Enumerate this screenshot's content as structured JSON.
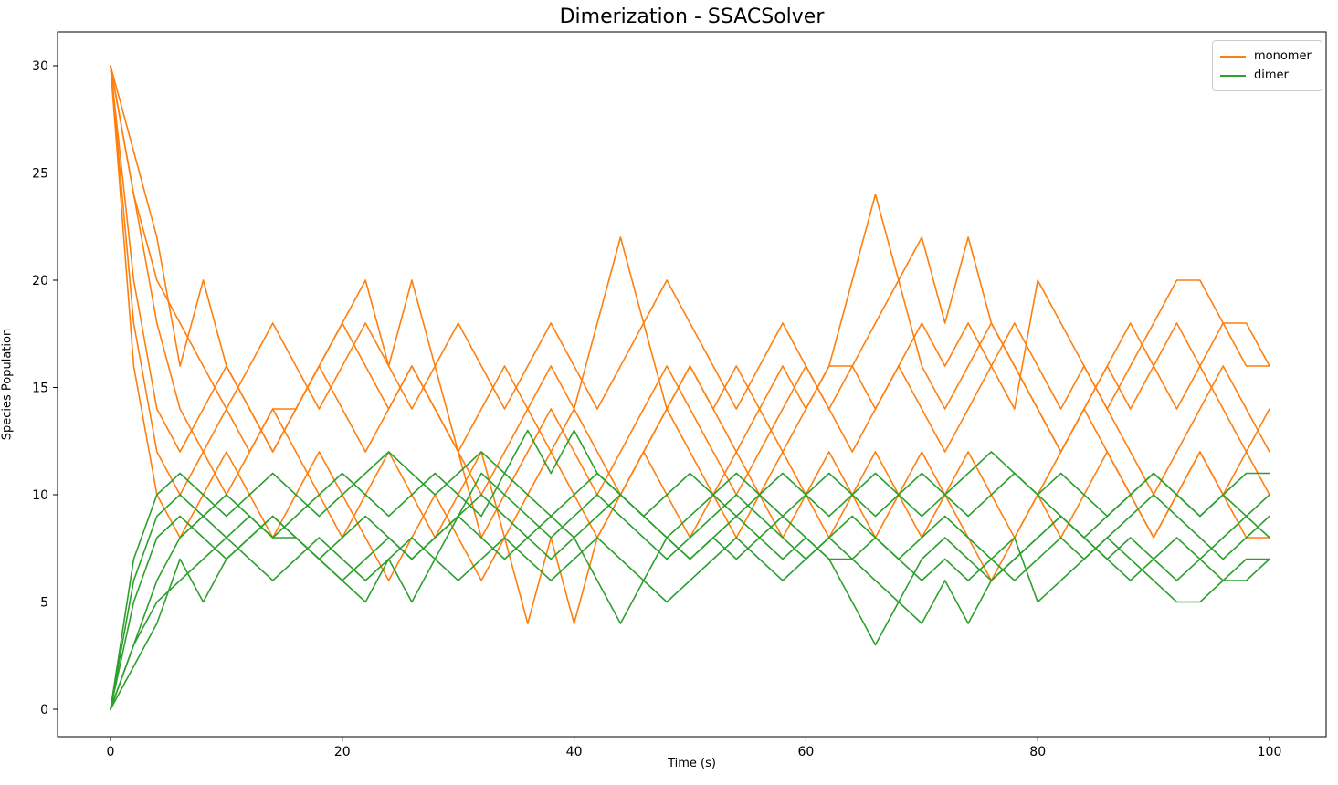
{
  "figure": {
    "title": "Dimerization - SSACSolver"
  },
  "axes": {
    "xlabel": "Time (s)",
    "ylabel": "Species Population"
  },
  "legend": {
    "position": "upper right",
    "items": [
      {
        "label": "monomer",
        "color": "#ff7f0e"
      },
      {
        "label": "dimer",
        "color": "#2ca02c"
      }
    ]
  },
  "chart_data": {
    "type": "line",
    "title": "Dimerization - SSACSolver",
    "xlabel": "Time (s)",
    "ylabel": "Species Population",
    "xlim": [
      0,
      100
    ],
    "ylim": [
      0,
      30
    ],
    "xticks": [
      0,
      20,
      40,
      60,
      80,
      100
    ],
    "yticks": [
      0,
      5,
      10,
      15,
      20,
      25,
      30
    ],
    "grid": false,
    "legend_position": "upper right",
    "n_trajectories": 6,
    "x": [
      0,
      2,
      4,
      6,
      8,
      10,
      12,
      14,
      16,
      18,
      20,
      22,
      24,
      26,
      28,
      30,
      32,
      34,
      36,
      38,
      40,
      42,
      44,
      46,
      48,
      50,
      52,
      54,
      56,
      58,
      60,
      62,
      64,
      66,
      68,
      70,
      72,
      74,
      76,
      78,
      80,
      82,
      84,
      86,
      88,
      90,
      92,
      94,
      96,
      98,
      100
    ],
    "series": [
      {
        "name": "monomer",
        "color": "#ff7f0e",
        "trajectories": [
          [
            30,
            24,
            18,
            14,
            12,
            14,
            12,
            14,
            14,
            16,
            14,
            12,
            14,
            16,
            14,
            12,
            14,
            16,
            14,
            12,
            14,
            18,
            22,
            18,
            14,
            16,
            14,
            12,
            14,
            16,
            14,
            16,
            20,
            24,
            20,
            16,
            14,
            16,
            18,
            16,
            14,
            12,
            14,
            16,
            14,
            16,
            18,
            16,
            14,
            12,
            14
          ],
          [
            30,
            26,
            22,
            16,
            20,
            16,
            14,
            12,
            14,
            16,
            18,
            16,
            14,
            16,
            14,
            12,
            10,
            12,
            14,
            16,
            14,
            12,
            10,
            12,
            14,
            16,
            14,
            16,
            14,
            12,
            14,
            16,
            16,
            18,
            20,
            22,
            18,
            22,
            18,
            16,
            14,
            12,
            14,
            16,
            18,
            16,
            14,
            16,
            18,
            16,
            16
          ],
          [
            30,
            20,
            14,
            12,
            14,
            16,
            14,
            12,
            14,
            16,
            18,
            20,
            16,
            20,
            16,
            12,
            8,
            10,
            12,
            14,
            12,
            10,
            12,
            14,
            16,
            14,
            12,
            10,
            12,
            14,
            16,
            14,
            12,
            14,
            16,
            14,
            12,
            14,
            16,
            18,
            16,
            14,
            16,
            14,
            12,
            10,
            12,
            14,
            16,
            14,
            12
          ],
          [
            30,
            18,
            12,
            10,
            12,
            10,
            12,
            14,
            12,
            10,
            8,
            10,
            12,
            10,
            8,
            10,
            12,
            8,
            4,
            8,
            4,
            8,
            10,
            12,
            10,
            8,
            10,
            12,
            10,
            8,
            10,
            12,
            10,
            8,
            10,
            12,
            10,
            8,
            6,
            8,
            10,
            8,
            10,
            12,
            10,
            8,
            10,
            12,
            10,
            8,
            8
          ],
          [
            30,
            24,
            20,
            18,
            16,
            14,
            16,
            18,
            16,
            14,
            16,
            18,
            16,
            14,
            16,
            18,
            16,
            14,
            16,
            18,
            16,
            14,
            16,
            18,
            20,
            18,
            16,
            14,
            16,
            18,
            16,
            14,
            16,
            14,
            16,
            18,
            16,
            18,
            16,
            14,
            20,
            18,
            16,
            14,
            16,
            18,
            20,
            20,
            18,
            18,
            16
          ],
          [
            30,
            16,
            10,
            8,
            10,
            12,
            10,
            8,
            10,
            12,
            10,
            8,
            6,
            8,
            10,
            8,
            6,
            8,
            10,
            12,
            10,
            8,
            10,
            12,
            14,
            12,
            10,
            8,
            10,
            12,
            10,
            8,
            10,
            12,
            10,
            8,
            10,
            12,
            10,
            8,
            10,
            12,
            14,
            12,
            10,
            8,
            10,
            12,
            10,
            12,
            10
          ]
        ]
      },
      {
        "name": "dimer",
        "color": "#2ca02c",
        "trajectories": [
          [
            0,
            3,
            6,
            8,
            9,
            8,
            9,
            8,
            8,
            7,
            8,
            9,
            8,
            7,
            8,
            9,
            8,
            7,
            8,
            9,
            8,
            6,
            4,
            6,
            8,
            7,
            8,
            9,
            8,
            7,
            8,
            7,
            5,
            3,
            5,
            7,
            8,
            7,
            6,
            7,
            8,
            9,
            8,
            7,
            8,
            7,
            6,
            7,
            8,
            9,
            8
          ],
          [
            0,
            2,
            4,
            7,
            5,
            7,
            8,
            9,
            8,
            7,
            6,
            7,
            8,
            7,
            8,
            9,
            10,
            9,
            8,
            7,
            8,
            9,
            10,
            9,
            8,
            7,
            8,
            7,
            8,
            9,
            8,
            7,
            7,
            6,
            5,
            4,
            6,
            4,
            6,
            7,
            8,
            9,
            8,
            7,
            6,
            7,
            8,
            7,
            6,
            7,
            7
          ],
          [
            0,
            5,
            8,
            9,
            8,
            7,
            8,
            9,
            8,
            7,
            6,
            5,
            7,
            5,
            7,
            9,
            11,
            10,
            9,
            8,
            9,
            10,
            9,
            8,
            7,
            8,
            9,
            10,
            9,
            8,
            7,
            8,
            9,
            8,
            7,
            8,
            9,
            8,
            7,
            6,
            7,
            8,
            7,
            8,
            9,
            10,
            9,
            8,
            7,
            8,
            9
          ],
          [
            0,
            6,
            9,
            10,
            9,
            10,
            9,
            8,
            9,
            10,
            11,
            10,
            9,
            10,
            11,
            10,
            9,
            11,
            13,
            11,
            13,
            11,
            10,
            9,
            10,
            11,
            10,
            9,
            10,
            11,
            10,
            9,
            10,
            11,
            10,
            9,
            10,
            11,
            12,
            11,
            10,
            11,
            10,
            9,
            10,
            11,
            10,
            9,
            10,
            11,
            11
          ],
          [
            0,
            3,
            5,
            6,
            7,
            8,
            7,
            6,
            7,
            8,
            7,
            6,
            7,
            8,
            7,
            6,
            7,
            8,
            7,
            6,
            7,
            8,
            7,
            6,
            5,
            6,
            7,
            8,
            7,
            6,
            7,
            8,
            7,
            8,
            7,
            6,
            7,
            6,
            7,
            8,
            5,
            6,
            7,
            8,
            7,
            6,
            5,
            5,
            6,
            6,
            7
          ],
          [
            0,
            7,
            10,
            11,
            10,
            9,
            10,
            11,
            10,
            9,
            10,
            11,
            12,
            11,
            10,
            11,
            12,
            11,
            10,
            9,
            10,
            11,
            10,
            9,
            8,
            9,
            10,
            11,
            10,
            9,
            10,
            11,
            10,
            9,
            10,
            11,
            10,
            9,
            10,
            11,
            10,
            9,
            8,
            9,
            10,
            11,
            10,
            9,
            10,
            9,
            10
          ]
        ]
      }
    ]
  }
}
